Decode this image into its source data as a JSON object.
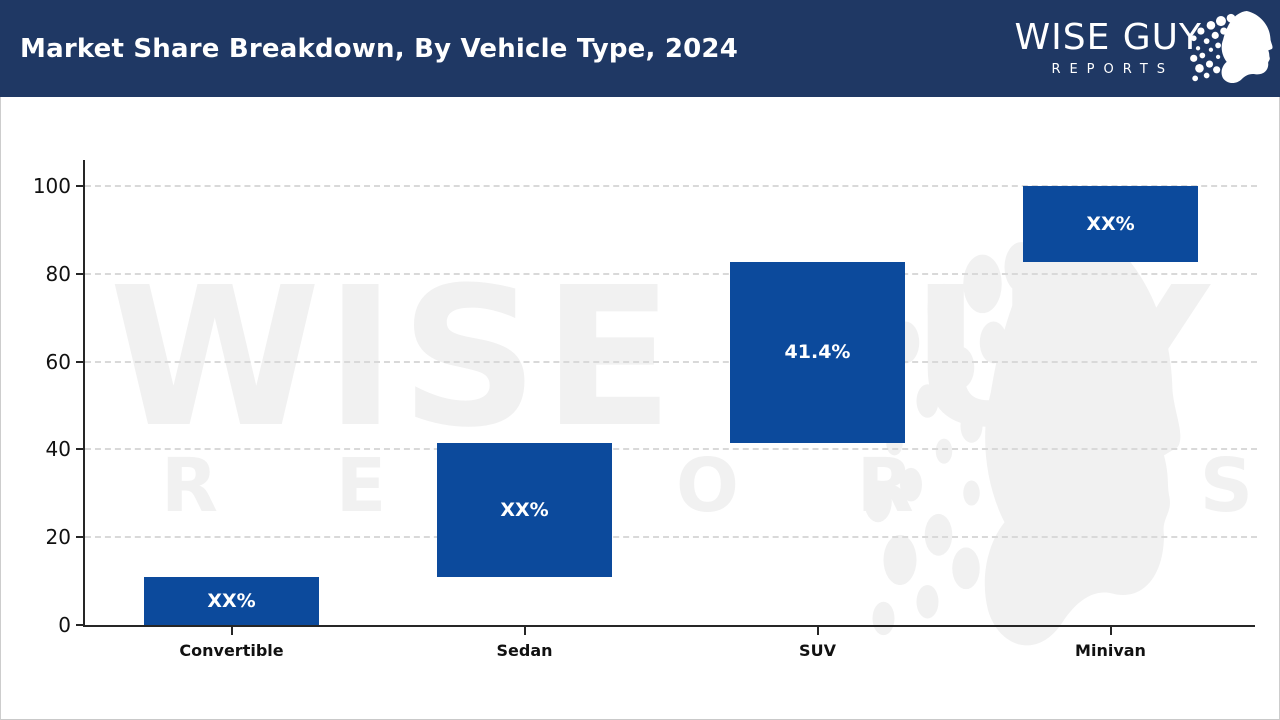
{
  "header": {
    "title": "Market Share Breakdown, By Vehicle Type, 2024",
    "logo": {
      "line1": "WISE GUY",
      "line2": "REPORTS"
    }
  },
  "watermark": {
    "line1": "WISE GUY",
    "line2": "R E P O R T S"
  },
  "colors": {
    "header_bg": "#1f3864",
    "title_text": "#ffffff",
    "bar": "#0c4a9c",
    "bar_label": "#ffffff",
    "axis": "#262626",
    "tick_text": "#111111",
    "gridline": "#d9d9d9",
    "watermark": "#f1f1f1"
  },
  "chart_data": {
    "type": "bar",
    "variant": "waterfall",
    "title": "Market Share Breakdown, By Vehicle Type, 2024",
    "categories": [
      "Convertible",
      "Sedan",
      "SUV",
      "Minivan"
    ],
    "series": [
      {
        "name": "Market Share (%)",
        "values": [
          11.0,
          30.4,
          41.4,
          17.2
        ],
        "starts": [
          0,
          11.0,
          41.4,
          82.8
        ]
      }
    ],
    "bar_labels": [
      "XX%",
      "XX%",
      "41.4%",
      "XX%"
    ],
    "xlabel": "",
    "ylabel": "",
    "ylim": [
      0,
      106
    ],
    "yticks": [
      0,
      20,
      40,
      60,
      80,
      100
    ],
    "grid": "horizontal-dashed",
    "legend": "none"
  }
}
